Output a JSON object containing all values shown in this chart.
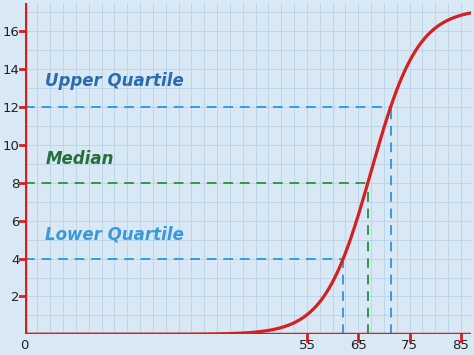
{
  "bg_color": "#d8e8f4",
  "grid_major_color": "#b5cde6",
  "grid_minor_color": "#c8dcee",
  "curve_color": "#d42020",
  "axis_color": "#d42020",
  "x_min": 0,
  "x_max": 87,
  "y_min": 0,
  "y_max": 17.5,
  "x_ticks": [
    0,
    55,
    65,
    75,
    85
  ],
  "y_ticks": [
    2,
    4,
    6,
    8,
    10,
    12,
    14,
    16
  ],
  "lower_quartile_y": 4,
  "median_y": 8,
  "upper_quartile_y": 12,
  "lq_label": "Lower Quartile",
  "med_label": "Median",
  "uq_label": "Upper Quartile",
  "label_color_blue": "#2b6cb0",
  "label_color_green": "#276e3b",
  "label_color_lq": "#3a9ad9",
  "dashed_blue": "#3a9ad9",
  "dashed_green": "#2a9d44",
  "sigmoid_x0": 67.5,
  "sigmoid_k": 0.22,
  "curve_max_y": 17.2,
  "curve_start_shift": true
}
